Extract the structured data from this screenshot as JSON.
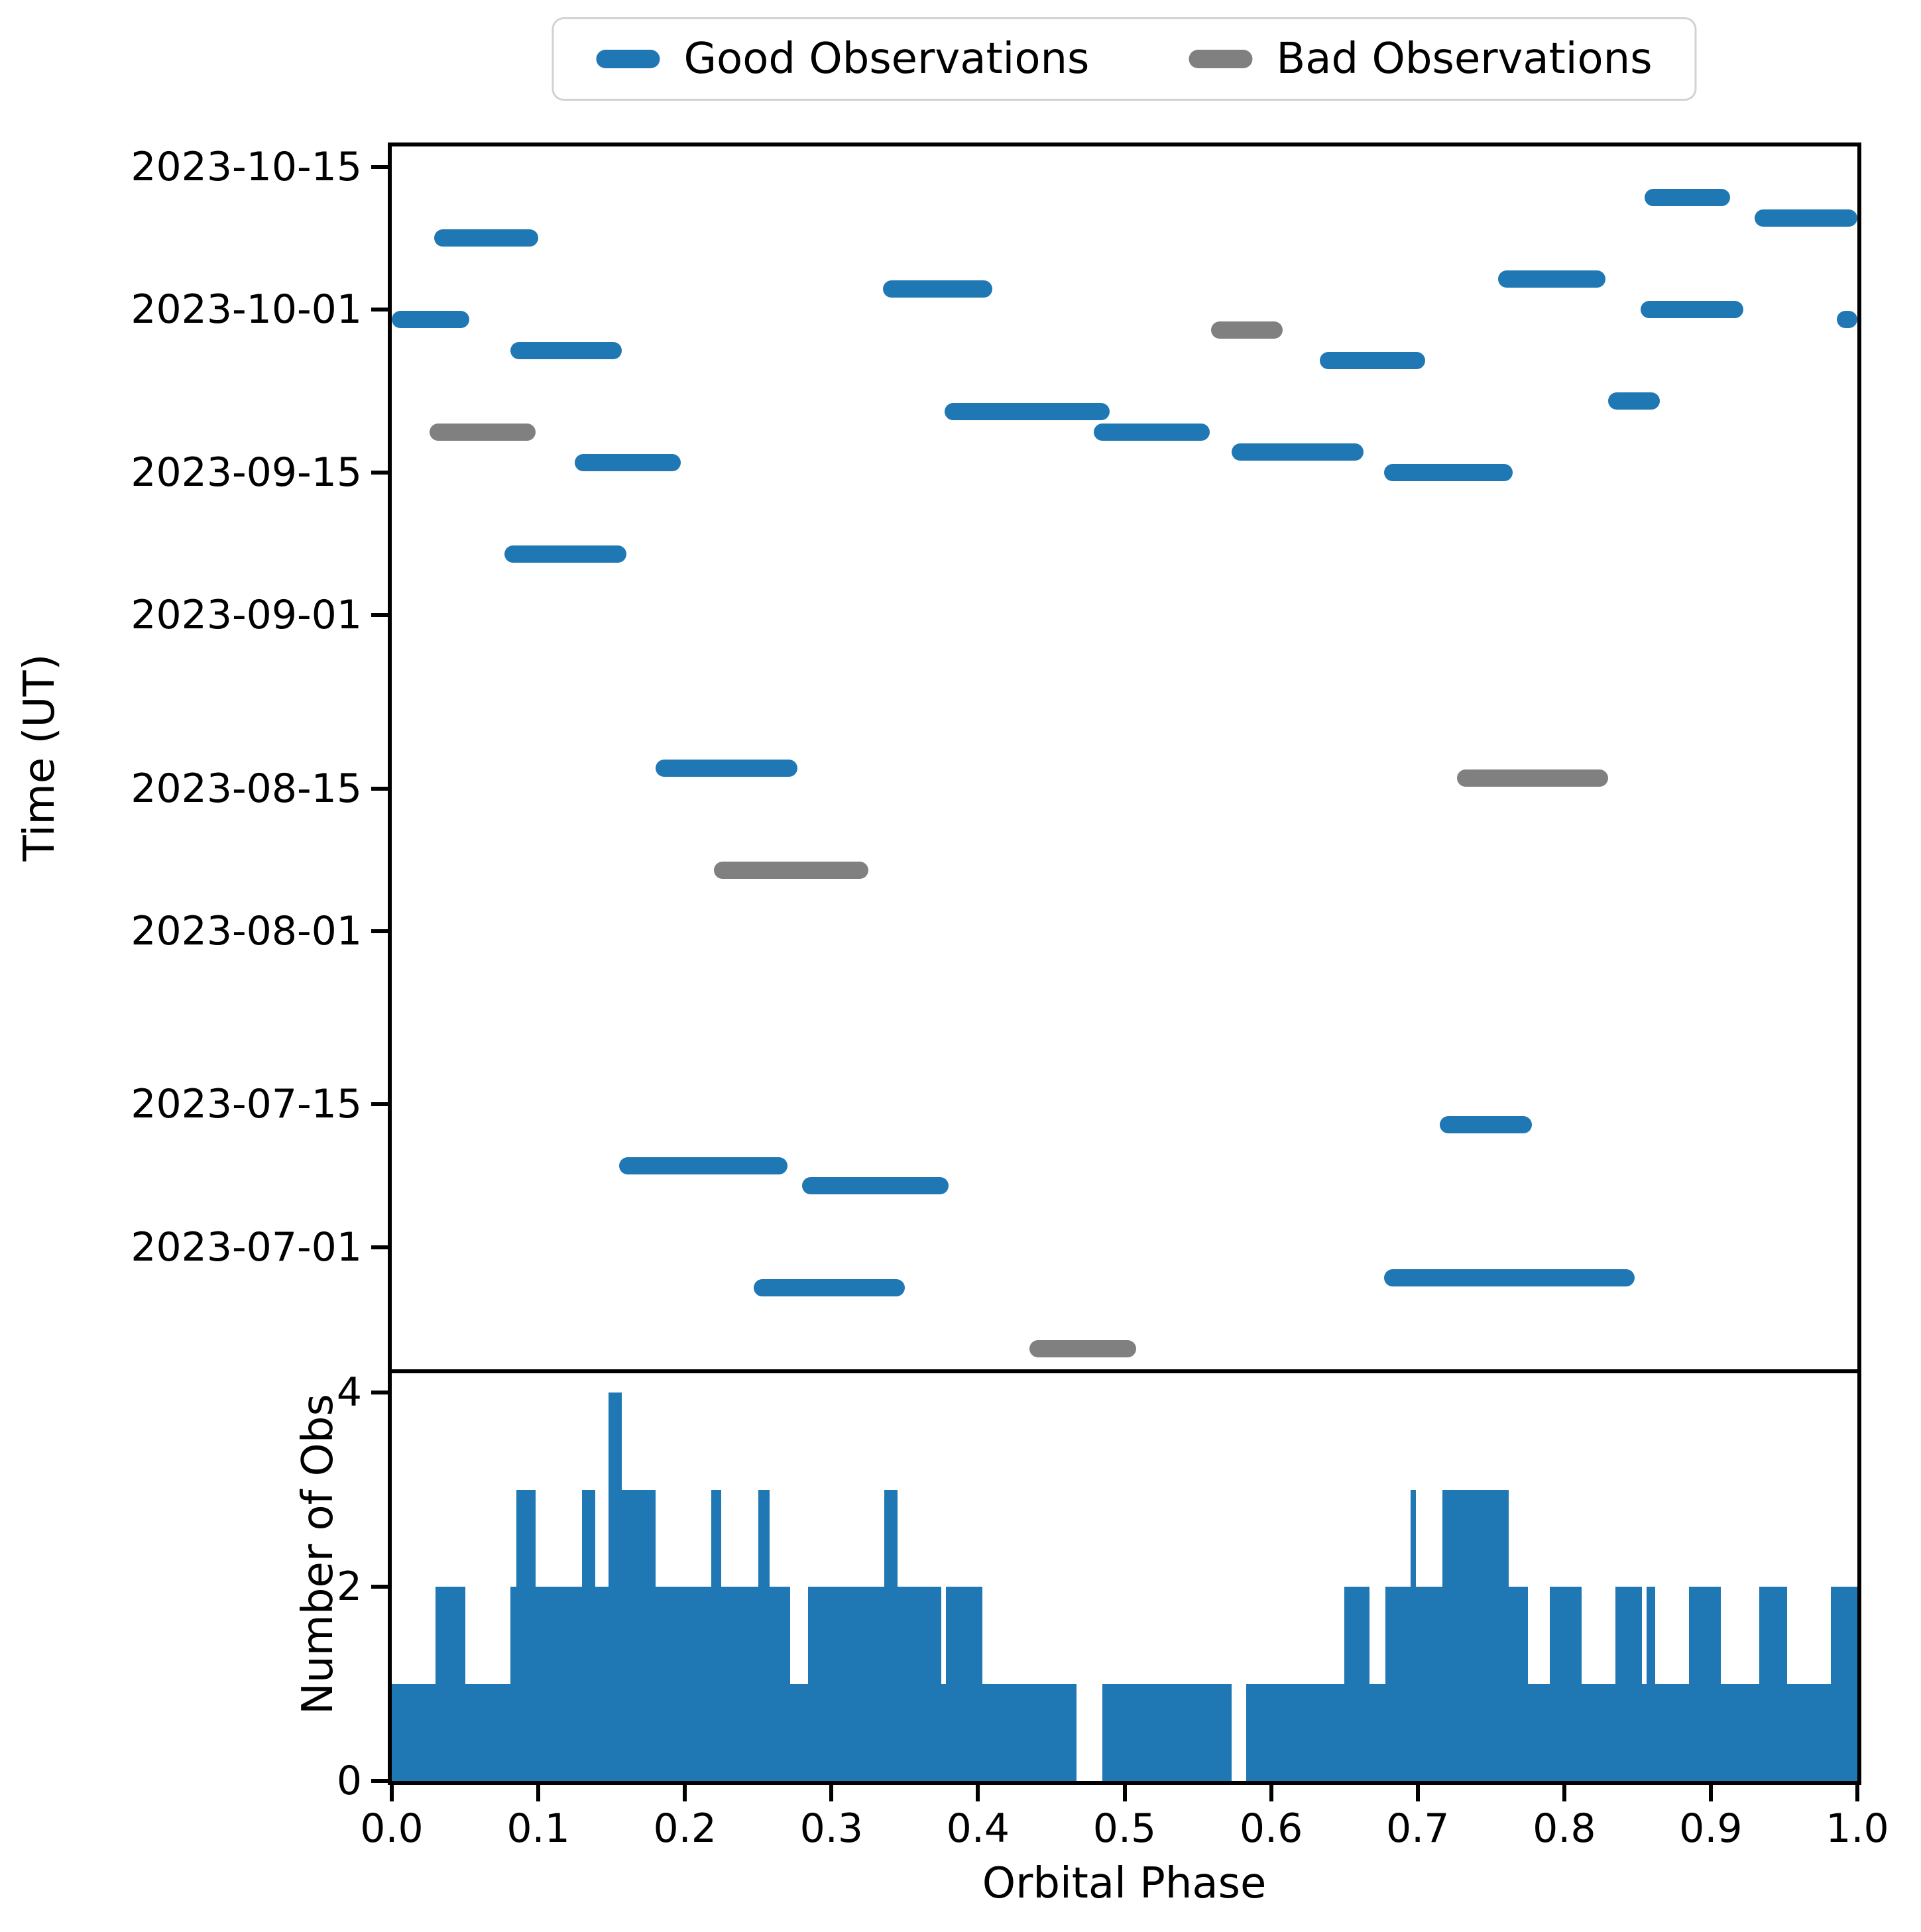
{
  "legend": {
    "good_label": "Good Observations",
    "bad_label": "Bad Observations"
  },
  "colors": {
    "good": "#1f77b4",
    "bad": "#808080",
    "axis": "#000000",
    "legend_border": "#d2d2d2"
  },
  "axes": {
    "time_label": "Time (UT)",
    "count_label": "Number of Obs",
    "phase_label": "Orbital Phase"
  },
  "chart_data": [
    {
      "id": "observation-timeline",
      "type": "line",
      "title": "",
      "xlabel": "",
      "ylabel": "Time (UT)",
      "xlim": [
        0,
        1
      ],
      "y_range": [
        "2023-06-19",
        "2023-10-17"
      ],
      "y_ticks": [
        "2023-10-15",
        "2023-10-01",
        "2023-09-15",
        "2023-09-01",
        "2023-08-15",
        "2023-08-01",
        "2023-07-15",
        "2023-07-01"
      ],
      "legend_position": "upper center, outside",
      "grid": false,
      "series": [
        {
          "name": "Good Observations",
          "color": "#1f77b4",
          "segments": [
            {
              "x0": 0.855,
              "x1": 0.913,
              "date": "2023-10-12"
            },
            {
              "x0": 0.93,
              "x1": 1.0,
              "date": "2023-10-10"
            },
            {
              "x0": 0.029,
              "x1": 0.1,
              "date": "2023-10-08"
            },
            {
              "x0": 0.755,
              "x1": 0.828,
              "date": "2023-10-04"
            },
            {
              "x0": 0.335,
              "x1": 0.41,
              "date": "2023-10-03"
            },
            {
              "x0": 0.852,
              "x1": 0.922,
              "date": "2023-10-01"
            },
            {
              "x0": 0.0,
              "x1": 0.053,
              "date": "2023-09-30"
            },
            {
              "x0": 0.986,
              "x1": 1.0,
              "date": "2023-09-30"
            },
            {
              "x0": 0.081,
              "x1": 0.157,
              "date": "2023-09-27"
            },
            {
              "x0": 0.633,
              "x1": 0.705,
              "date": "2023-09-26"
            },
            {
              "x0": 0.83,
              "x1": 0.865,
              "date": "2023-09-22"
            },
            {
              "x0": 0.377,
              "x1": 0.49,
              "date": "2023-09-21"
            },
            {
              "x0": 0.479,
              "x1": 0.558,
              "date": "2023-09-19"
            },
            {
              "x0": 0.573,
              "x1": 0.663,
              "date": "2023-09-17"
            },
            {
              "x0": 0.125,
              "x1": 0.197,
              "date": "2023-09-16"
            },
            {
              "x0": 0.677,
              "x1": 0.765,
              "date": "2023-09-15"
            },
            {
              "x0": 0.077,
              "x1": 0.16,
              "date": "2023-09-07"
            },
            {
              "x0": 0.18,
              "x1": 0.277,
              "date": "2023-08-17"
            },
            {
              "x0": 0.715,
              "x1": 0.778,
              "date": "2023-07-13"
            },
            {
              "x0": 0.155,
              "x1": 0.27,
              "date": "2023-07-09"
            },
            {
              "x0": 0.28,
              "x1": 0.38,
              "date": "2023-07-07"
            },
            {
              "x0": 0.677,
              "x1": 0.848,
              "date": "2023-06-28"
            },
            {
              "x0": 0.247,
              "x1": 0.35,
              "date": "2023-06-27"
            }
          ]
        },
        {
          "name": "Bad Observations",
          "color": "#808080",
          "segments": [
            {
              "x0": 0.559,
              "x1": 0.608,
              "date": "2023-09-29"
            },
            {
              "x0": 0.026,
              "x1": 0.098,
              "date": "2023-09-19"
            },
            {
              "x0": 0.727,
              "x1": 0.83,
              "date": "2023-08-16"
            },
            {
              "x0": 0.22,
              "x1": 0.325,
              "date": "2023-08-07"
            },
            {
              "x0": 0.435,
              "x1": 0.508,
              "date": "2023-06-21"
            }
          ]
        }
      ]
    },
    {
      "id": "phase-coverage-histogram",
      "type": "bar",
      "title": "",
      "xlabel": "Orbital Phase",
      "ylabel": "Number of Obs",
      "xlim": [
        0,
        1
      ],
      "ylim": [
        0,
        4.2
      ],
      "x_ticks": [
        "0.0",
        "0.1",
        "0.2",
        "0.3",
        "0.4",
        "0.5",
        "0.6",
        "0.7",
        "0.8",
        "0.9",
        "1.0"
      ],
      "y_ticks": [
        0,
        2,
        4
      ],
      "bar_color": "#1f77b4",
      "breaks": [
        0.0,
        0.03,
        0.05,
        0.081,
        0.085,
        0.098,
        0.13,
        0.139,
        0.148,
        0.157,
        0.18,
        0.218,
        0.225,
        0.25,
        0.258,
        0.272,
        0.284,
        0.336,
        0.345,
        0.375,
        0.378,
        0.403,
        0.467,
        0.485,
        0.573,
        0.583,
        0.65,
        0.667,
        0.678,
        0.695,
        0.699,
        0.717,
        0.762,
        0.775,
        0.79,
        0.812,
        0.835,
        0.853,
        0.856,
        0.862,
        0.885,
        0.907,
        0.933,
        0.952,
        0.982,
        1.0
      ],
      "heights": [
        1,
        2,
        1,
        2,
        3,
        2,
        3,
        2,
        4,
        3,
        2,
        3,
        2,
        3,
        2,
        1,
        2,
        3,
        2,
        1,
        2,
        1,
        0,
        1,
        0,
        1,
        2,
        1,
        2,
        3,
        2,
        3,
        2,
        1,
        2,
        1,
        2,
        1,
        2,
        1,
        2,
        1,
        2,
        1,
        2
      ]
    }
  ]
}
